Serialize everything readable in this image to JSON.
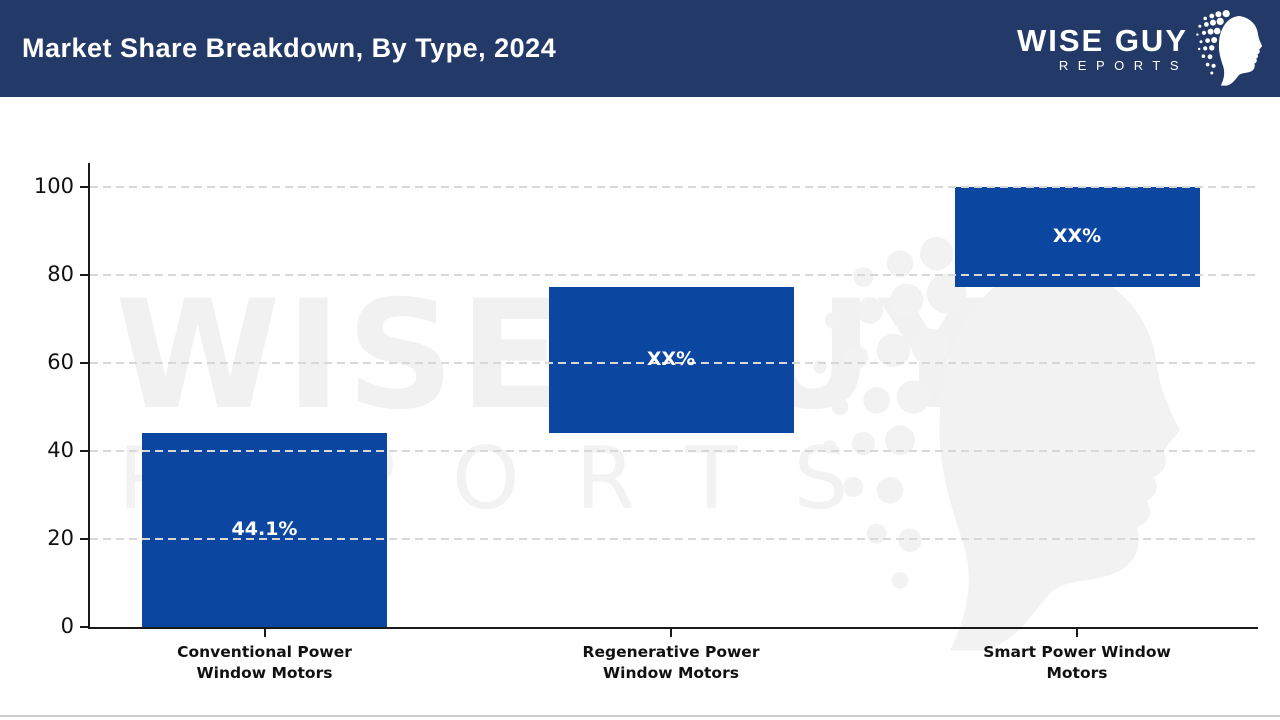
{
  "header": {
    "title": "Market Share Breakdown, By Type, 2024",
    "logo": {
      "line1": "WISE GUY",
      "line2": "REPORTS"
    },
    "bg_color": "#233a68"
  },
  "watermark": {
    "line1": "WISE GUY",
    "line2": "REPORTS"
  },
  "chart_data": {
    "type": "bar",
    "subtype": "waterfall",
    "title": "Market Share Breakdown, By Type, 2024",
    "categories": [
      "Conventional Power Window Motors",
      "Regenerative Power Window Motors",
      "Smart Power Window Motors"
    ],
    "category_lines": [
      [
        "Conventional Power",
        "Window Motors"
      ],
      [
        "Regenerative Power",
        "Window Motors"
      ],
      [
        "Smart Power Window",
        "Motors"
      ]
    ],
    "segments": [
      {
        "label": "44.1%",
        "start": 0,
        "end": 44.1
      },
      {
        "label": "XX%",
        "start": 44.1,
        "end": 77.3
      },
      {
        "label": "XX%",
        "start": 77.3,
        "end": 100
      }
    ],
    "xlabel": "",
    "ylabel": "",
    "ylim": [
      0,
      100
    ],
    "yticks": [
      0,
      20,
      40,
      60,
      80,
      100
    ],
    "grid": "horizontal dashed",
    "legend": "none",
    "bar_color": "#0b46a0",
    "bar_label_color": "#ffffff",
    "axis_color": "#1a1a1a"
  }
}
